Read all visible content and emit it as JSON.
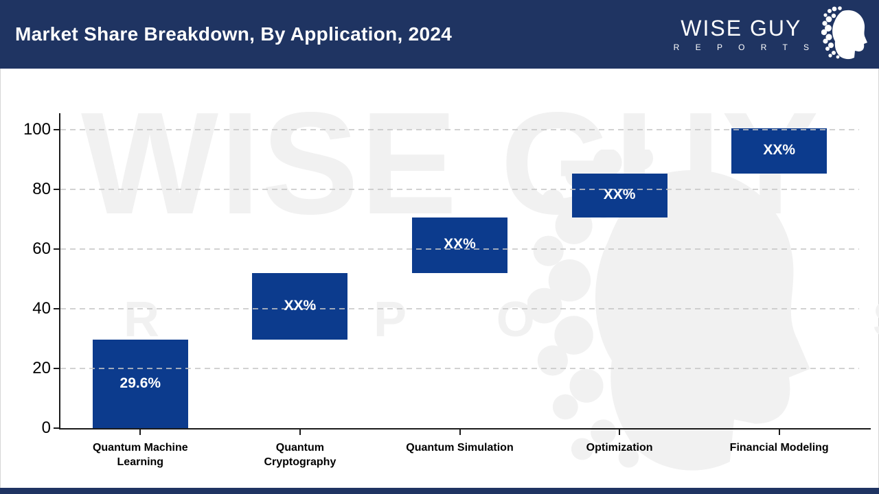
{
  "header": {
    "title": "Market Share Breakdown, By Application, 2024",
    "bg_color": "#1f3462",
    "logo": {
      "line1": "WISE GUY",
      "line2": "R E P O R T S"
    }
  },
  "watermark": {
    "line1": "WISE GUY",
    "line2": "R E P O R T S",
    "color": "#f1f1f1"
  },
  "chart_data": {
    "type": "bar",
    "subtype": "waterfall",
    "title": "Market Share Breakdown, By Application, 2024",
    "categories": [
      "Quantum Machine Learning",
      "Quantum Cryptography",
      "Quantum Simulation",
      "Optimization",
      "Financial Modeling"
    ],
    "categories_display": [
      [
        "Quantum Machine",
        "Learning"
      ],
      [
        "Quantum",
        "Cryptography"
      ],
      [
        "Quantum Simulation"
      ],
      [
        "Optimization"
      ],
      [
        "Financial Modeling"
      ]
    ],
    "series": [
      {
        "name": "Market Share (%)",
        "segments": [
          {
            "category": "Quantum Machine Learning",
            "start": 0,
            "end": 29.6,
            "label": "29.6%"
          },
          {
            "category": "Quantum Cryptography",
            "start": 29.6,
            "end": 52.0,
            "label": "XX%"
          },
          {
            "category": "Quantum Simulation",
            "start": 52.0,
            "end": 70.6,
            "label": "XX%"
          },
          {
            "category": "Optimization",
            "start": 70.6,
            "end": 85.3,
            "label": "XX%"
          },
          {
            "category": "Financial Modeling",
            "start": 85.3,
            "end": 100.5,
            "label": "XX%"
          }
        ]
      }
    ],
    "ylim": [
      0,
      105
    ],
    "yticks": [
      0,
      20,
      40,
      60,
      80,
      100
    ],
    "grid": "horizontal-dashed",
    "legend": "none",
    "bar_color": "#0c3b8d",
    "bar_label_color": "#ffffff",
    "axis_color": "#1a1a1a"
  }
}
